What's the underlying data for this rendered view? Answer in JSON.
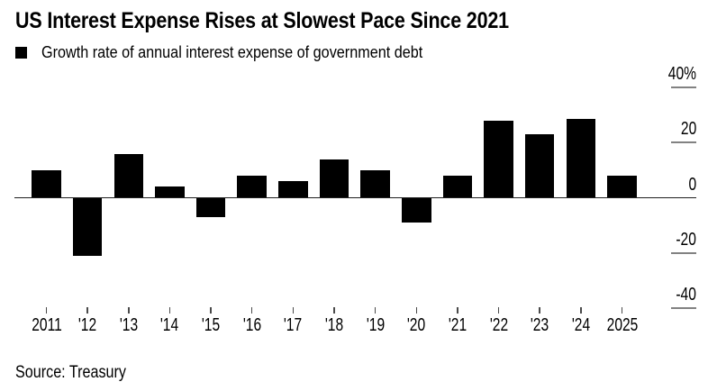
{
  "title": "US Interest Expense Rises at Slowest Pace Since 2021",
  "legend": {
    "label": "Growth rate of annual interest expense of government debt",
    "marker_color": "#000000"
  },
  "source": "Source: Treasury",
  "colors": {
    "background": "#ffffff",
    "bar": "#000000",
    "axis_line": "#1f1f1f",
    "y_tick_dash": "#828282",
    "x_tick": "#4a4a4a",
    "text": "#000000"
  },
  "chart_data": {
    "type": "bar",
    "title": "US Interest Expense Rises at Slowest Pace Since 2021",
    "series_label": "Growth rate of annual interest expense of government debt",
    "categories": [
      "2011",
      "'12",
      "'13",
      "'14",
      "'15",
      "'16",
      "'17",
      "'18",
      "'19",
      "'20",
      "'21",
      "'22",
      "'23",
      "'24",
      "2025"
    ],
    "values": [
      10,
      -21,
      16,
      4,
      -7,
      8,
      6,
      14,
      10,
      -9,
      8,
      28,
      23,
      28.5,
      8
    ],
    "unit": "%",
    "xlabel": "",
    "ylabel": "",
    "ylim": [
      -45,
      42
    ],
    "y_ticks": [
      {
        "value": 40,
        "label": "40%"
      },
      {
        "value": 20,
        "label": "20"
      },
      {
        "value": 0,
        "label": "0"
      },
      {
        "value": -20,
        "label": "-20"
      },
      {
        "value": -40,
        "label": "-40"
      }
    ],
    "y_axis_side": "right",
    "legend_position": "top-left",
    "grid": "right-side tick dashes only",
    "bar_color": "#000000",
    "source": "Source: Treasury"
  }
}
